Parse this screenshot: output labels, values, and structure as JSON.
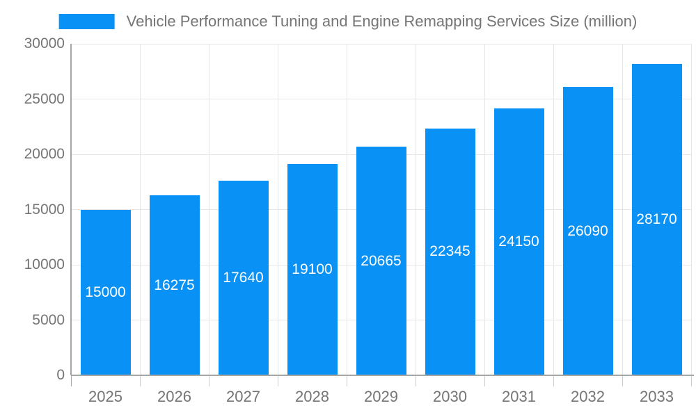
{
  "chart_data": {
    "type": "bar",
    "title": "Vehicle Performance Tuning and Engine Remapping Services Size (million)",
    "legend": {
      "position": "top",
      "label": "Vehicle Performance Tuning and Engine Remapping Services Size (million)"
    },
    "categories": [
      "2025",
      "2026",
      "2027",
      "2028",
      "2029",
      "2030",
      "2031",
      "2032",
      "2033"
    ],
    "values": [
      15000,
      16275,
      17640,
      19100,
      20665,
      22345,
      24150,
      26090,
      28170
    ],
    "xlabel": "",
    "ylabel": "",
    "ylim": [
      0,
      30000
    ],
    "yticks": [
      0,
      5000,
      10000,
      15000,
      20000,
      25000,
      30000
    ],
    "grid": true,
    "bar_value_labels_inside": true,
    "colors": {
      "bar": "#0a91f5",
      "axis_text": "#757575",
      "bar_label_text": "#ffffff",
      "grid_line": "#e6e6e6",
      "axis_line": "#a6a6a6",
      "tick_line": "#cccccc",
      "background": "#ffffff"
    }
  }
}
